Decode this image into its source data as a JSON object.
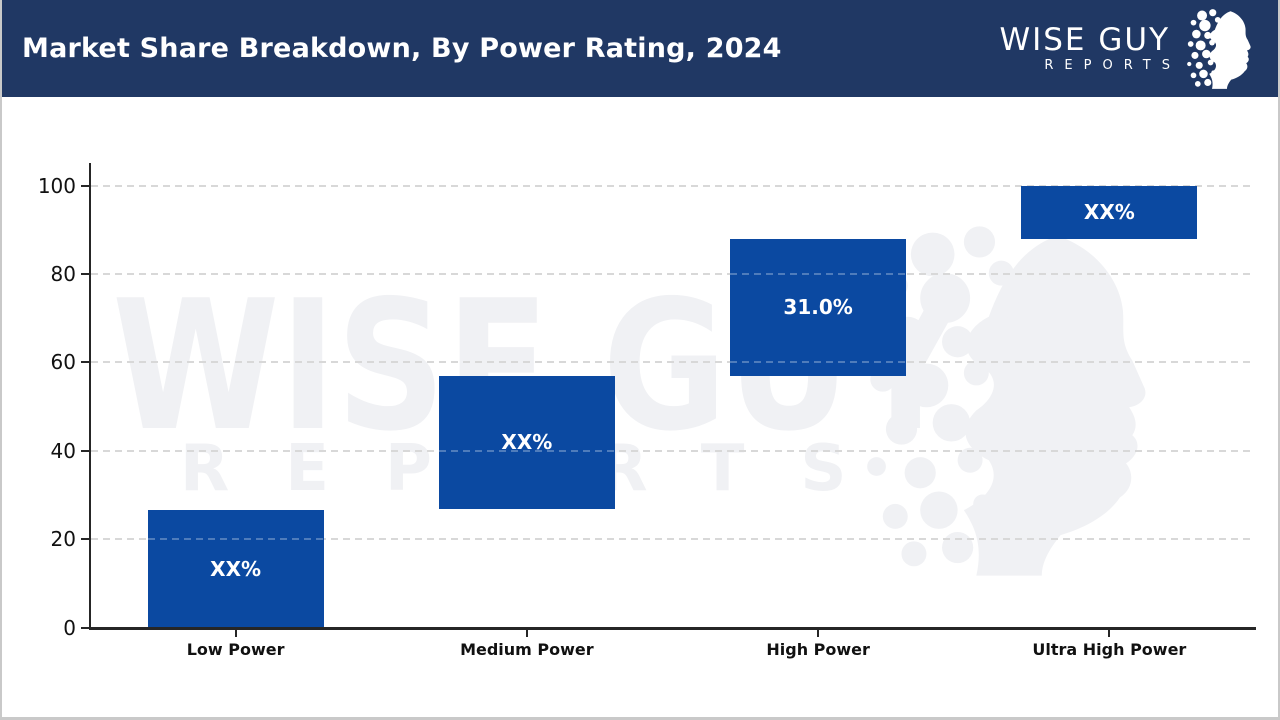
{
  "header": {
    "title": "Market Share Breakdown, By Power Rating, 2024",
    "bg_color": "#203864",
    "logo": {
      "line1": "WISE GUY",
      "line2": "REPORTS"
    }
  },
  "watermark": {
    "line1": "WISE GUY",
    "line2": "REPORTS"
  },
  "chart_data": {
    "type": "bar",
    "subtype": "waterfall",
    "title": "Market Share Breakdown, By Power Rating, 2024",
    "categories": [
      "Low Power",
      "Medium Power",
      "High Power",
      "Ultra High Power"
    ],
    "segments": [
      {
        "category": "Low Power",
        "start": 0,
        "end": 26.5,
        "label": "XX%"
      },
      {
        "category": "Medium Power",
        "start": 26.8,
        "end": 57.0,
        "label": "XX%"
      },
      {
        "category": "High Power",
        "start": 57.0,
        "end": 88.0,
        "label": "31.0%"
      },
      {
        "category": "Ultra High Power",
        "start": 88.0,
        "end": 100.0,
        "label": "XX%"
      }
    ],
    "y_ticks": [
      0,
      20,
      40,
      60,
      80,
      100
    ],
    "ylim": [
      0,
      105
    ],
    "xlabel": "",
    "ylabel": "",
    "bar_color": "#0b49a1",
    "value_label_color": "#ffffff",
    "grid": true,
    "grid_style": "dashed",
    "legend": false
  }
}
